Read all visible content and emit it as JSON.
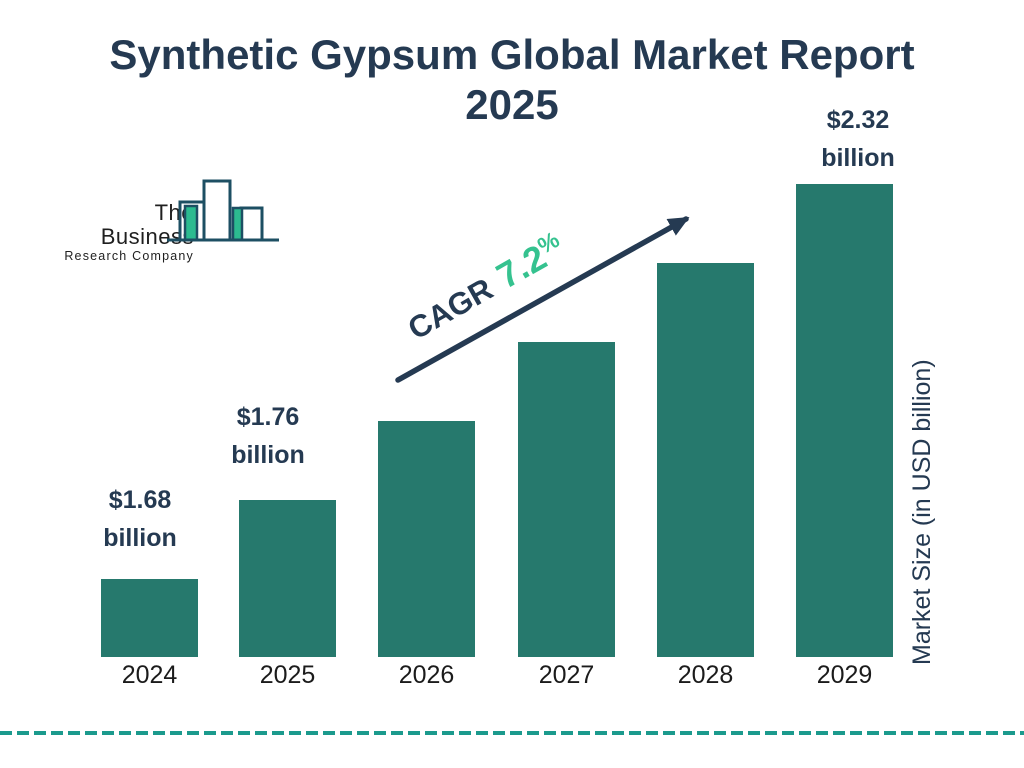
{
  "title": {
    "line1": "Synthetic Gypsum Global Market Report",
    "line2": "2025",
    "full": "Synthetic Gypsum Global Market Report 2025"
  },
  "logo": {
    "line1": "The Business",
    "line2": "Research Company",
    "icon": "bar-chart-skyline-icon"
  },
  "cagr": {
    "label": "CAGR",
    "value": "7.2",
    "percent_sign": "%"
  },
  "y_axis_label": "Market Size (in USD billion)",
  "colors": {
    "bar": "#26796d",
    "navy": "#253a52",
    "green": "#35c28f",
    "dashed_line": "#1b9a8d",
    "year_label": "#1b1b1b",
    "logo_outline": "#1d4f63",
    "logo_green": "#2cbb90"
  },
  "chart_data": {
    "type": "bar",
    "title": "Synthetic Gypsum Global Market Report 2025",
    "categories": [
      "2024",
      "2025",
      "2026",
      "2027",
      "2028",
      "2029"
    ],
    "values": [
      1.68,
      1.76,
      null,
      null,
      null,
      2.32
    ],
    "value_labels": [
      {
        "amount": "$1.68",
        "unit": "billion"
      },
      {
        "amount": "$1.76",
        "unit": "billion"
      },
      null,
      null,
      null,
      {
        "amount": "$2.32",
        "unit": "billion"
      }
    ],
    "ylabel": "Market Size (in USD billion)",
    "xlabel": "",
    "annotation": "CAGR 7.2%",
    "legend": "none",
    "grid": "off",
    "note": "stylized infographic; only 2024, 2025 and 2029 bars carry value labels; bar heights rise in equal steps"
  }
}
